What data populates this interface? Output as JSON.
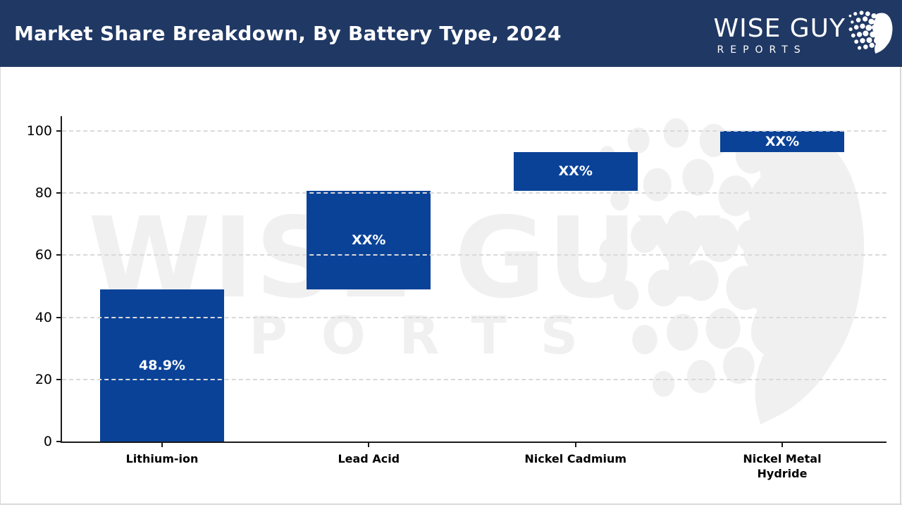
{
  "header": {
    "title": "Market Share Breakdown, By Battery Type, 2024",
    "logo": {
      "line1": "WISE GUY",
      "line2": "REPORTS"
    }
  },
  "watermark": {
    "line1": "WISE GUY",
    "line2": "REPORTS"
  },
  "colors": {
    "header_bg": "#203864",
    "bar": "#0a4298",
    "grid": "#d9d9d9",
    "watermark": "#f0f0f0"
  },
  "chart_data": {
    "type": "bar",
    "variant": "waterfall-stacked-percentage",
    "title": "Market Share Breakdown, By Battery Type, 2024",
    "categories": [
      "Lithium-ion",
      "Lead Acid",
      "Nickel Cadmium",
      "Nickel Metal Hydride"
    ],
    "series": [
      {
        "name": "Market share (%), cumulative segments",
        "starts": [
          0,
          48.9,
          80.8,
          93.3
        ],
        "ends": [
          48.9,
          80.8,
          93.3,
          100
        ]
      }
    ],
    "bar_labels": [
      "48.9%",
      "XX%",
      "XX%",
      "XX%"
    ],
    "xlabel": "",
    "ylabel": "",
    "ylim": [
      0,
      100
    ],
    "yticks": [
      0,
      20,
      40,
      60,
      80,
      100
    ],
    "grid": "horizontal dashed, drawn over bars",
    "legend": false
  }
}
